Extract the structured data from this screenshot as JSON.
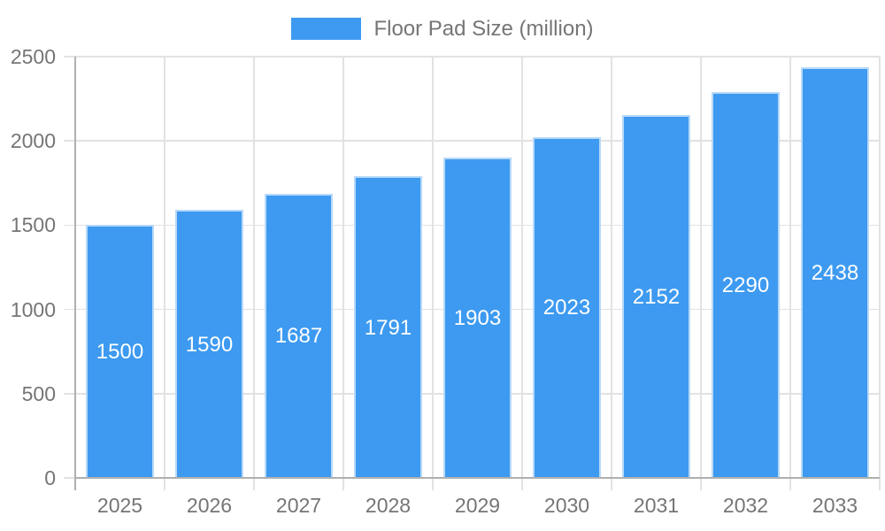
{
  "legend": {
    "label": "Floor Pad Size (million)"
  },
  "chart_data": {
    "type": "bar",
    "title": "",
    "xlabel": "",
    "ylabel": "",
    "categories": [
      "2025",
      "2026",
      "2027",
      "2028",
      "2029",
      "2030",
      "2031",
      "2032",
      "2033"
    ],
    "values": [
      1500,
      1590,
      1687,
      1791,
      1903,
      2023,
      2152,
      2290,
      2438
    ],
    "series": [
      {
        "name": "Floor Pad Size (million)",
        "values": [
          1500,
          1590,
          1687,
          1791,
          1903,
          2023,
          2152,
          2290,
          2438
        ]
      }
    ],
    "ylim": [
      0,
      2500
    ],
    "yticks": [
      0,
      500,
      1000,
      1500,
      2000,
      2500
    ],
    "grid": true,
    "legend_position": "top",
    "value_labels_position": "inside-middle",
    "colors": {
      "bar": "#3d9af0",
      "bar_border": "#b8d9f8",
      "value_label": "#ffffff",
      "axis_text": "#757575",
      "gridline": "#e2e2e2",
      "axis_line": "#b0b0b0"
    }
  }
}
